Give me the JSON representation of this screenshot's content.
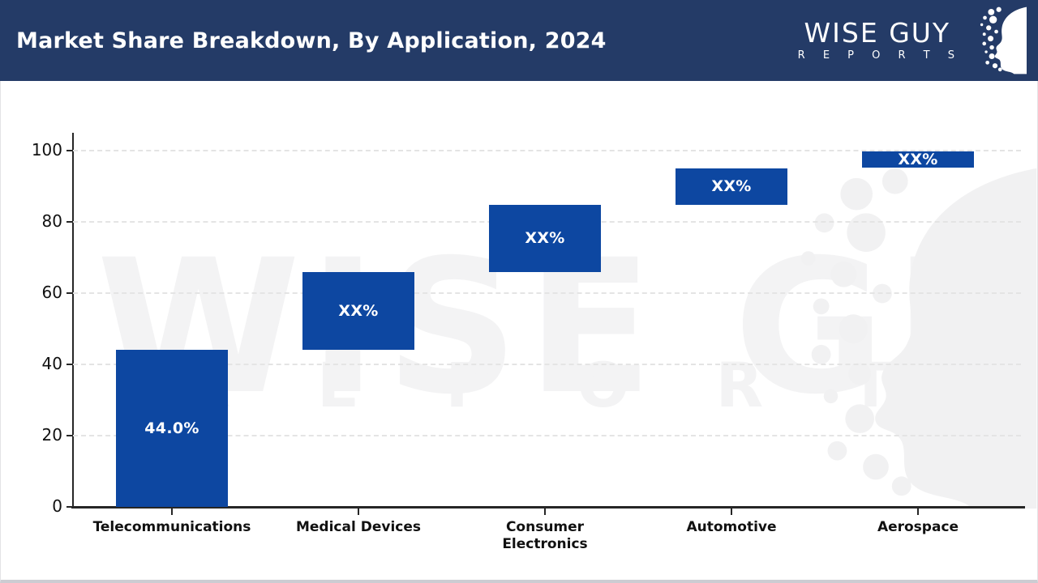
{
  "header": {
    "title": "Market Share Breakdown, By Application, 2024",
    "bg_color": "#243b67",
    "logo": {
      "line1": "WISE GUY",
      "line2": "R E P O R T S"
    }
  },
  "watermark": {
    "line1": "WISE GUY",
    "line2": "R E P O R T S"
  },
  "chart_data": {
    "type": "bar",
    "subtype": "waterfall",
    "title": "Market Share Breakdown, By Application, 2024",
    "categories": [
      "Telecommunications",
      "Medical Devices",
      "Consumer\nElectronics",
      "Automotive",
      "Aerospace"
    ],
    "segments": [
      {
        "category": "Telecommunications",
        "start": 0,
        "end": 44.0,
        "label": "44.0%"
      },
      {
        "category": "Medical Devices",
        "start": 44.0,
        "end": 66.0,
        "label": "XX%"
      },
      {
        "category": "Consumer Electronics",
        "start": 66.0,
        "end": 84.8,
        "label": "XX%"
      },
      {
        "category": "Automotive",
        "start": 84.8,
        "end": 95.0,
        "label": "XX%"
      },
      {
        "category": "Aerospace",
        "start": 95.3,
        "end": 99.8,
        "label": "XX%"
      }
    ],
    "yticks": [
      0,
      20,
      40,
      60,
      80,
      100
    ],
    "ylim": [
      0,
      105
    ],
    "xlabel": "",
    "ylabel": "",
    "bar_color": "#0d47a1",
    "bar_label_color": "#ffffff",
    "grid": "horizontal-dashed",
    "legend": "none"
  }
}
